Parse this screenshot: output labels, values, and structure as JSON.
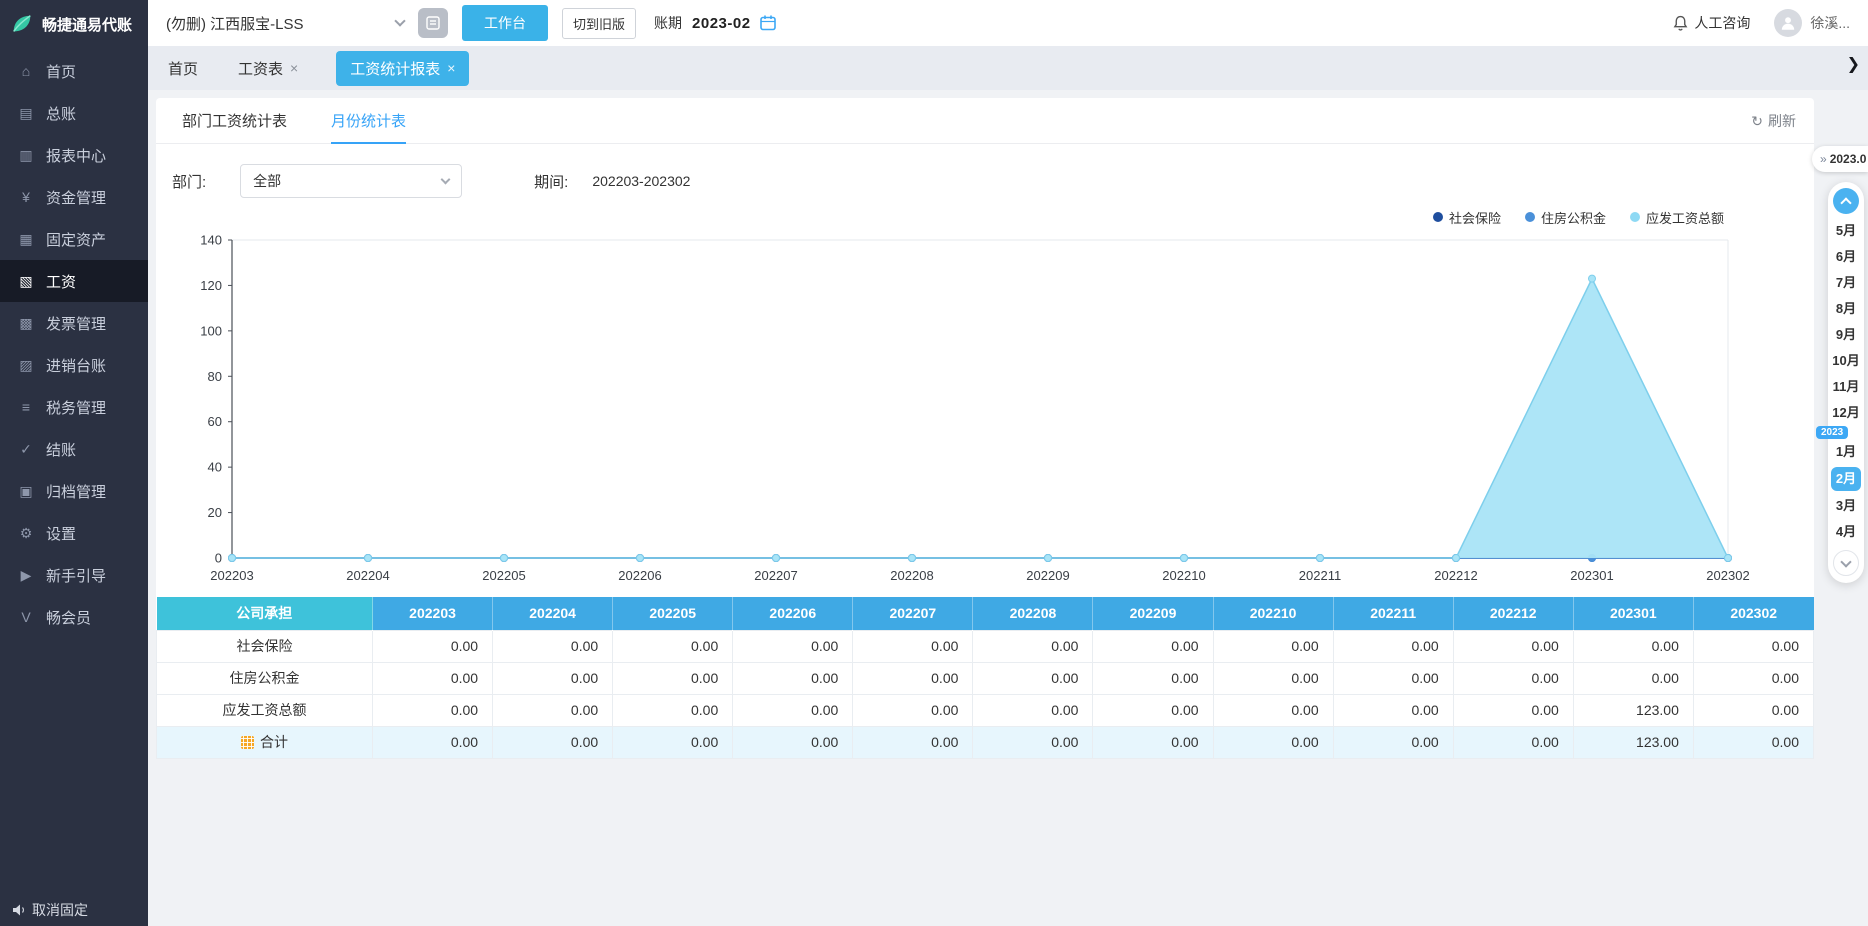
{
  "colors": {
    "accent_blue": "#36a3f7",
    "button_cyan": "#3ab2e8",
    "table_header_blue": "#3fa9e4",
    "table_header_cyan": "#3ec2da",
    "total_row_bg": "#e7f6fd",
    "sidebar_bg": "#2b3142",
    "sidebar_active_bg": "#171b26",
    "chart_fill": "#a9e4f7"
  },
  "sidebar": {
    "logo_title": "畅捷通易代账",
    "unpin_label": "取消固定",
    "items": [
      {
        "key": "home",
        "label": "首页",
        "glyph": "⌂",
        "active": false
      },
      {
        "key": "general-ledger",
        "label": "总账",
        "glyph": "▤",
        "active": false
      },
      {
        "key": "report-center",
        "label": "报表中心",
        "glyph": "▥",
        "active": false
      },
      {
        "key": "fund-management",
        "label": "资金管理",
        "glyph": "¥",
        "active": false
      },
      {
        "key": "fixed-assets",
        "label": "固定资产",
        "glyph": "▦",
        "active": false
      },
      {
        "key": "salary",
        "label": "工资",
        "glyph": "▧",
        "active": true
      },
      {
        "key": "invoice-management",
        "label": "发票管理",
        "glyph": "▩",
        "active": false
      },
      {
        "key": "purchase-sales-ledger",
        "label": "进销台账",
        "glyph": "▨",
        "active": false
      },
      {
        "key": "tax-management",
        "label": "税务管理",
        "glyph": "≡",
        "active": false
      },
      {
        "key": "closing",
        "label": "结账",
        "glyph": "✓",
        "active": false
      },
      {
        "key": "archive-management",
        "label": "归档管理",
        "glyph": "▣",
        "active": false
      },
      {
        "key": "settings",
        "label": "设置",
        "glyph": "⚙",
        "active": false
      },
      {
        "key": "beginner-guide",
        "label": "新手引导",
        "glyph": "▶",
        "active": false
      },
      {
        "key": "member",
        "label": "畅会员",
        "glyph": "V",
        "active": false
      }
    ]
  },
  "topbar": {
    "company_selector": "(勿删) 江西服宝-LSS",
    "workbench_button": "工作台",
    "switch_old_button": "切到旧版",
    "period_label": "账期",
    "period_value": "2023-02",
    "consult_label": "人工咨询",
    "username": "徐溪..."
  },
  "tabbar": {
    "tabs": [
      {
        "key": "home",
        "label": "首页",
        "closable": false,
        "active": false
      },
      {
        "key": "salary-sheet",
        "label": "工资表",
        "closable": true,
        "active": false
      },
      {
        "key": "salary-report",
        "label": "工资统计报表",
        "closable": true,
        "active": true
      }
    ]
  },
  "report": {
    "subtabs": [
      {
        "key": "department-salary",
        "label": "部门工资统计表",
        "active": false
      },
      {
        "key": "monthly-salary",
        "label": "月份统计表",
        "active": true
      }
    ],
    "refresh_label": "刷新",
    "department_label": "部门:",
    "department_value": "全部",
    "range_label": "期间:",
    "range_value": "202203-202302"
  },
  "chart_data": {
    "type": "area",
    "x": [
      "202203",
      "202204",
      "202205",
      "202206",
      "202207",
      "202208",
      "202209",
      "202210",
      "202211",
      "202212",
      "202301",
      "202302"
    ],
    "series": [
      {
        "name": "社会保险",
        "color": "#1f4e9e",
        "values": [
          0,
          0,
          0,
          0,
          0,
          0,
          0,
          0,
          0,
          0,
          0,
          0
        ]
      },
      {
        "name": "住房公积金",
        "color": "#4a90d9",
        "values": [
          0,
          0,
          0,
          0,
          0,
          0,
          0,
          0,
          0,
          0,
          0,
          0
        ]
      },
      {
        "name": "应发工资总额",
        "color": "#8ed9f4",
        "fill": "#a9e4f7",
        "stroke": "#7ecfec",
        "values": [
          0,
          0,
          0,
          0,
          0,
          0,
          0,
          0,
          0,
          0,
          123,
          0
        ]
      }
    ],
    "ylim": [
      0,
      140
    ],
    "yticks": [
      0,
      20,
      40,
      60,
      80,
      100,
      120,
      140
    ],
    "legend_position": "top-right",
    "grid": "minimal"
  },
  "table": {
    "header": [
      "公司承担",
      "202203",
      "202204",
      "202205",
      "202206",
      "202207",
      "202208",
      "202209",
      "202210",
      "202211",
      "202212",
      "202301",
      "202302"
    ],
    "rows": [
      {
        "key": "social-insurance",
        "label": "社会保险",
        "total": false,
        "icon": false,
        "values": [
          "0.00",
          "0.00",
          "0.00",
          "0.00",
          "0.00",
          "0.00",
          "0.00",
          "0.00",
          "0.00",
          "0.00",
          "0.00",
          "0.00"
        ]
      },
      {
        "key": "housing-fund",
        "label": "住房公积金",
        "total": false,
        "icon": false,
        "values": [
          "0.00",
          "0.00",
          "0.00",
          "0.00",
          "0.00",
          "0.00",
          "0.00",
          "0.00",
          "0.00",
          "0.00",
          "0.00",
          "0.00"
        ]
      },
      {
        "key": "gross-salary",
        "label": "应发工资总额",
        "total": false,
        "icon": false,
        "values": [
          "0.00",
          "0.00",
          "0.00",
          "0.00",
          "0.00",
          "0.00",
          "0.00",
          "0.00",
          "0.00",
          "0.00",
          "123.00",
          "0.00"
        ]
      },
      {
        "key": "total",
        "label": "合计",
        "total": true,
        "icon": true,
        "values": [
          "0.00",
          "0.00",
          "0.00",
          "0.00",
          "0.00",
          "0.00",
          "0.00",
          "0.00",
          "0.00",
          "0.00",
          "123.00",
          "0.00"
        ]
      }
    ]
  },
  "right_panel": {
    "header_label": "2023.0",
    "collapse_icon": "»",
    "year_badge": "2023",
    "year_badge_before": "1月",
    "active_month": "2月",
    "months": [
      "5月",
      "6月",
      "7月",
      "8月",
      "9月",
      "10月",
      "11月",
      "12月",
      "1月",
      "2月",
      "3月",
      "4月"
    ]
  }
}
